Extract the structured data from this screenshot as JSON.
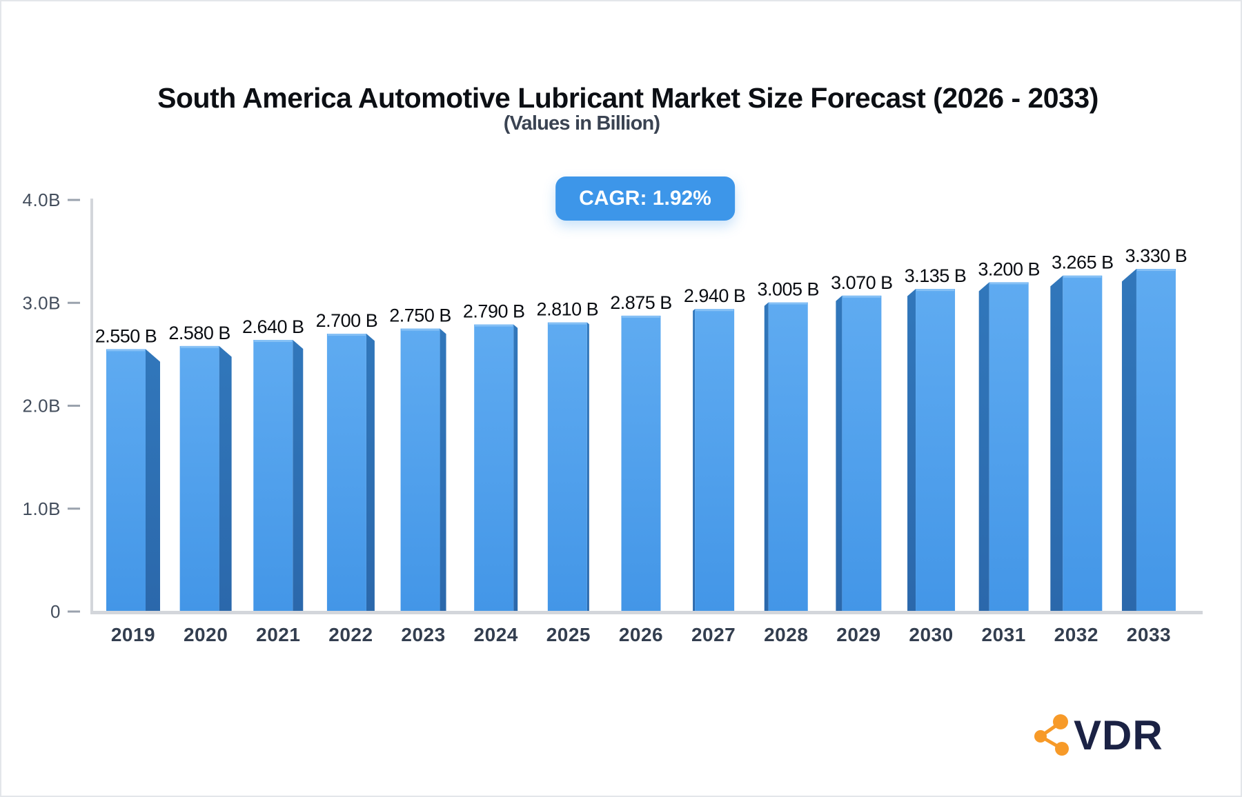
{
  "header": {
    "title": "South America Automotive Lubricant Market Size Forecast (2026 - 2033)",
    "subtitle": "(Values in Billion)",
    "cagr_badge": "CAGR: 1.92%"
  },
  "chart_data": {
    "type": "bar",
    "title": "South America Automotive Lubricant Market Size Forecast (2026 - 2033)",
    "subtitle": "(Values in Billion)",
    "unit": "Billion",
    "categories": [
      "2019",
      "2020",
      "2021",
      "2022",
      "2023",
      "2024",
      "2025",
      "2026",
      "2027",
      "2028",
      "2029",
      "2030",
      "2031",
      "2032",
      "2033"
    ],
    "values": [
      2.55,
      2.58,
      2.64,
      2.7,
      2.75,
      2.79,
      2.81,
      2.875,
      2.94,
      3.005,
      3.07,
      3.135,
      3.2,
      3.265,
      3.33
    ],
    "value_labels": [
      "2.550 B",
      "2.580 B",
      "2.640 B",
      "2.700 B",
      "2.750 B",
      "2.790 B",
      "2.810 B",
      "2.875 B",
      "2.940 B",
      "3.005 B",
      "3.070 B",
      "3.135 B",
      "3.200 B",
      "3.265 B",
      "3.330 B"
    ],
    "y_ticks": [
      "0",
      "1.0B",
      "2.0B",
      "3.0B",
      "4.0B"
    ],
    "ylim": [
      0,
      4.0
    ],
    "xlabel": "",
    "ylabel": "",
    "legend": "none",
    "grid": "off",
    "cagr": "1.92%"
  },
  "branding": {
    "logo_text": "VDR",
    "logo_icon": "share-network-icon"
  },
  "colors": {
    "bar_front_top": "#5fabf1",
    "bar_front_bottom": "#4396e7",
    "bar_top_highlight": "#85c0f5",
    "bar_side_top": "#3177bb",
    "bar_side_bottom": "#2b68ab",
    "axis_line": "#d3d6db",
    "tick": "#9aa2ad",
    "y_label": "#434d5c",
    "x_label": "#333e4f",
    "value_label": "#0a0d12",
    "badge_bg": "#3d96e9",
    "badge_text": "#ffffff",
    "logo_text": "#1b2244",
    "logo_icon": "#f79a28"
  }
}
